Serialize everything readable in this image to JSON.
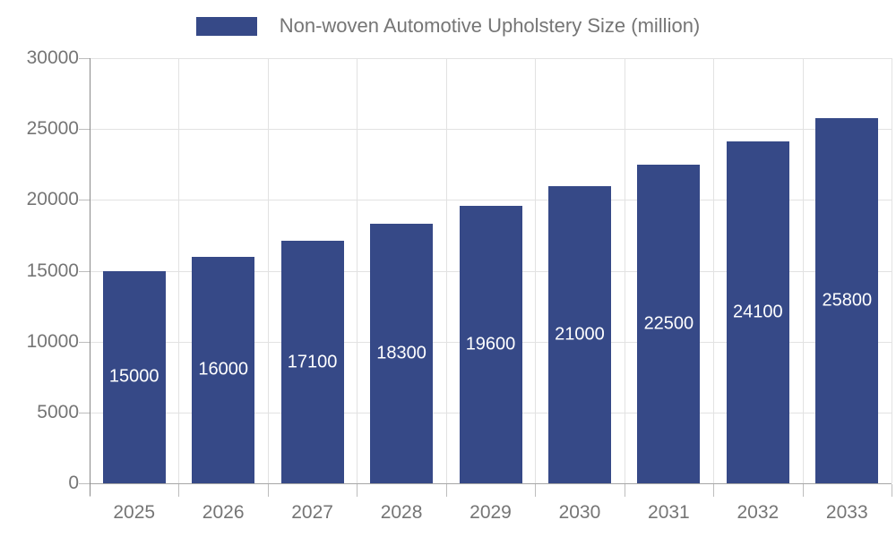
{
  "chart_data": {
    "type": "bar",
    "title": "Non-woven Automotive Upholstery Size (million)",
    "categories": [
      "2025",
      "2026",
      "2027",
      "2028",
      "2029",
      "2030",
      "2031",
      "2032",
      "2033"
    ],
    "values": [
      15000,
      16000,
      17100,
      18300,
      19600,
      21000,
      22500,
      24100,
      25800
    ],
    "bar_labels": [
      "15000",
      "16000",
      "17100",
      "18300",
      "19600",
      "21000",
      "22500",
      "24100",
      "25800"
    ],
    "xlabel": "",
    "ylabel": "",
    "ylim": [
      0,
      30000
    ],
    "y_ticks": [
      "0",
      "5000",
      "10000",
      "15000",
      "20000",
      "25000",
      "30000"
    ],
    "grid": true,
    "legend_position": "top",
    "colors": {
      "bar": "#364987",
      "bar_label_text": "#ffffff",
      "axis_text": "#757575",
      "grid_line": "#e2e2e2",
      "axis_line": "#8a8a8a",
      "baseline": "#a6a6a6",
      "tick": "#bdbdbd",
      "background": "#ffffff"
    }
  }
}
